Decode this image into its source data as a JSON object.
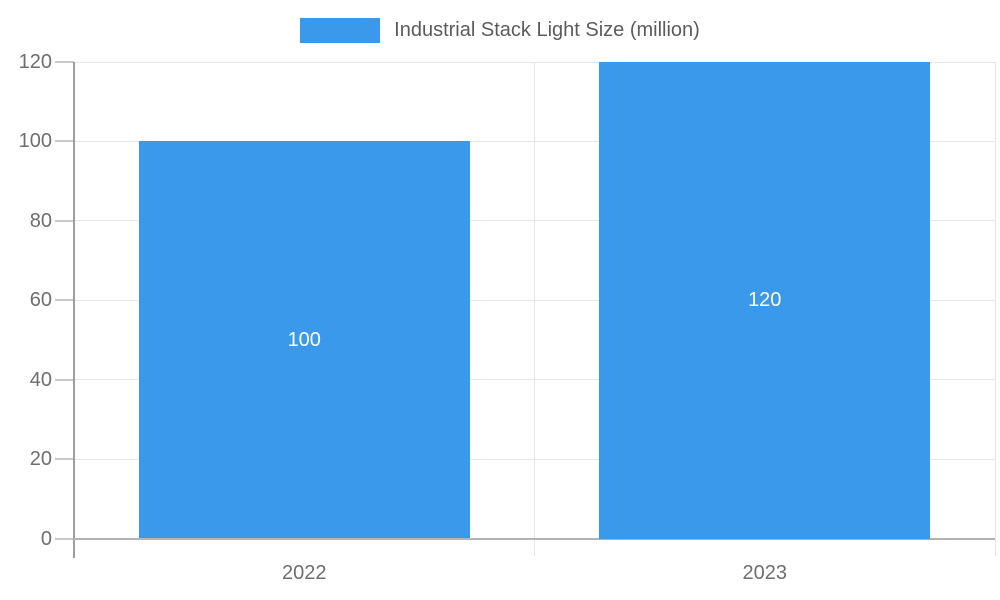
{
  "chart_data": {
    "type": "bar",
    "title": "",
    "legend_label": "Industrial Stack Light Size (million)",
    "legend_position": "top",
    "categories": [
      "2022",
      "2023"
    ],
    "series": [
      {
        "name": "Industrial Stack Light Size (million)",
        "values": [
          100,
          120
        ]
      }
    ],
    "value_labels": [
      "100",
      "120"
    ],
    "yticks": [
      "0",
      "20",
      "40",
      "60",
      "80",
      "100",
      "120"
    ],
    "ytick_values": [
      0,
      20,
      40,
      60,
      80,
      100,
      120
    ],
    "ylim": [
      0,
      120
    ],
    "grid": true,
    "colors": {
      "bar": "#3b99ec",
      "value_label": "#ffffff",
      "grid_line": "#e6e6e6",
      "tick_mark": "#c9c9c9",
      "y_axis_line": "#9e9e9e",
      "x_axis_line": "#b3b3b3",
      "axis_label": "#6e6e6e",
      "legend_text": "#5c5c5c",
      "background": "#ffffff"
    }
  }
}
